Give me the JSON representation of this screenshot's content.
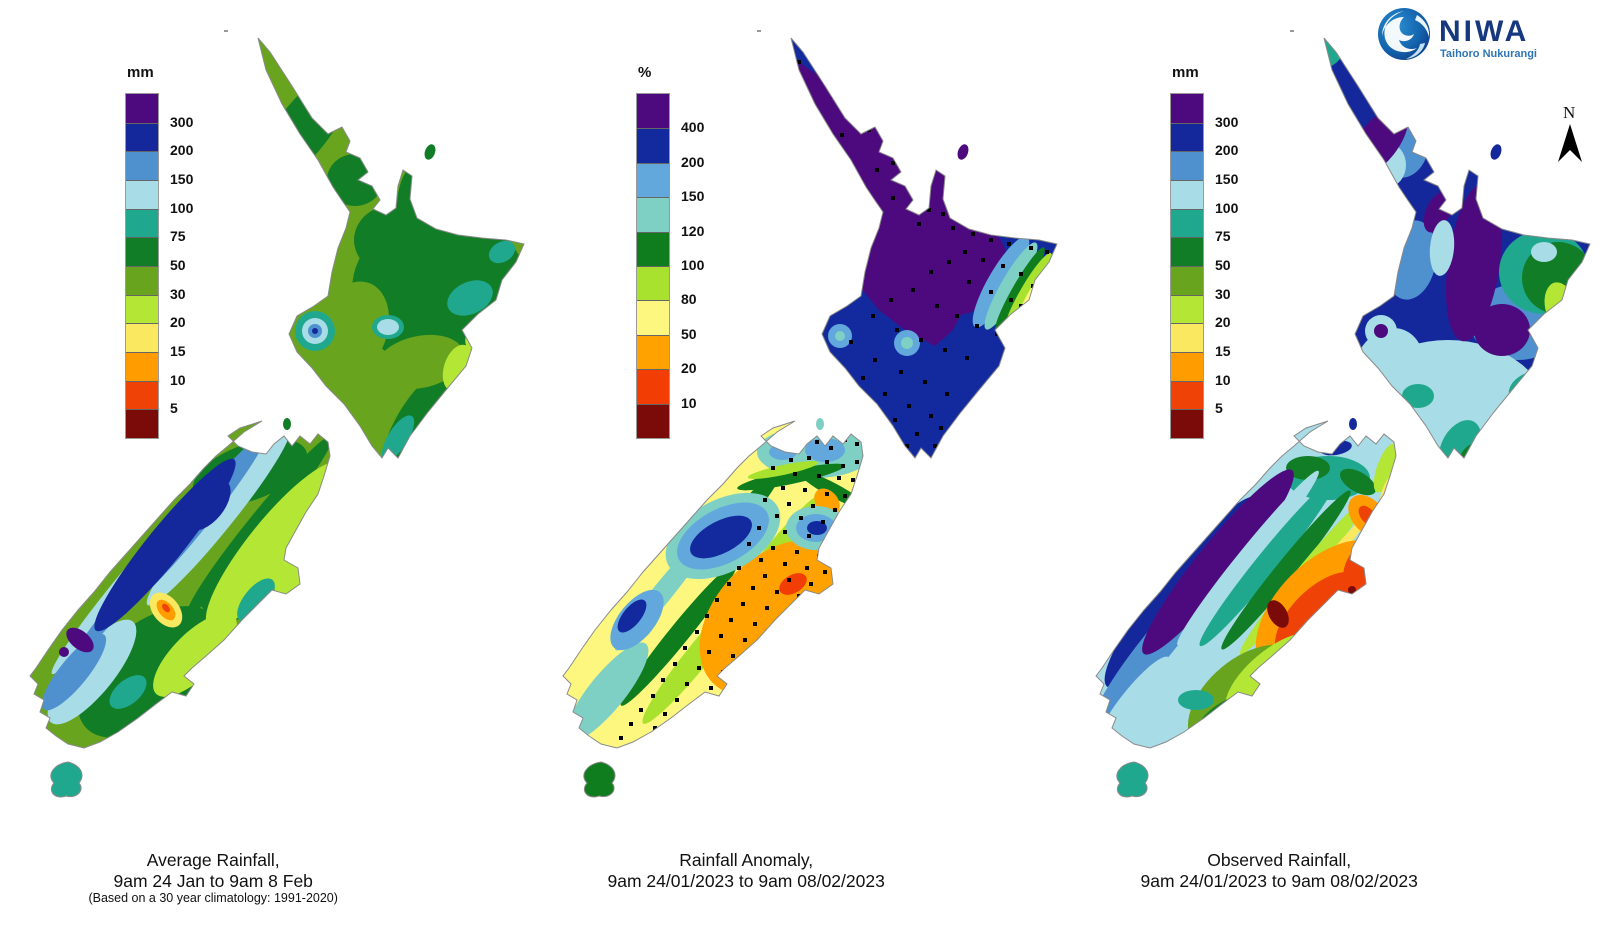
{
  "branding": {
    "name": "NIWA",
    "tagline": "Taihoro Nukurangi"
  },
  "compass_label": "N",
  "palette": {
    "logo_dark_blue": "#16387f",
    "logo_mid_blue": "#2e75b5",
    "coastline_grey": "#8a8a8a",
    "station_dot_black": "#000000"
  },
  "maps": [
    {
      "id": "average-rainfall",
      "legend": {
        "title": "mm",
        "labels": [
          "300",
          "200",
          "150",
          "100",
          "75",
          "50",
          "30",
          "20",
          "15",
          "10",
          "5"
        ],
        "colors": [
          "#4c0a7e",
          "#14289c",
          "#4f90cf",
          "#a8dce6",
          "#20a88e",
          "#117d27",
          "#68a41d",
          "#b3e635",
          "#fae860",
          "#ff9c00",
          "#ee4206",
          "#7b0b08"
        ]
      },
      "caption": {
        "line1": "Average Rainfall,",
        "line2": "9am 24 Jan to 9am 8 Feb",
        "line3": "(Based on a 30 year climatology: 1991-2020)"
      }
    },
    {
      "id": "rainfall-anomaly",
      "legend": {
        "title": "%",
        "labels": [
          "400",
          "200",
          "150",
          "120",
          "100",
          "80",
          "50",
          "20",
          "10"
        ],
        "colors": [
          "#4c0a7e",
          "#122a9e",
          "#62a8dc",
          "#7fd0c4",
          "#0f7d1e",
          "#a8e22e",
          "#fdf77f",
          "#ffa200",
          "#f23d05",
          "#7b0b08"
        ]
      },
      "caption": {
        "line1": "Rainfall Anomaly,",
        "line2": "9am 24/01/2023 to 9am 08/02/2023"
      },
      "station_dots": {
        "north_island": [
          [
            266,
            62
          ],
          [
            300,
            96
          ],
          [
            318,
            120
          ],
          [
            336,
            130
          ],
          [
            309,
            135
          ],
          [
            349,
            148
          ],
          [
            360,
            163
          ],
          [
            344,
            170
          ],
          [
            372,
            180
          ],
          [
            384,
            196
          ],
          [
            360,
            198
          ],
          [
            396,
            210
          ],
          [
            410,
            214
          ],
          [
            386,
            224
          ],
          [
            420,
            228
          ],
          [
            440,
            234
          ],
          [
            458,
            240
          ],
          [
            476,
            244
          ],
          [
            498,
            248
          ],
          [
            514,
            252
          ],
          [
            432,
            252
          ],
          [
            450,
            260
          ],
          [
            470,
            266
          ],
          [
            488,
            274
          ],
          [
            500,
            286
          ],
          [
            416,
            262
          ],
          [
            398,
            272
          ],
          [
            436,
            282
          ],
          [
            458,
            292
          ],
          [
            478,
            300
          ],
          [
            488,
            306
          ],
          [
            380,
            290
          ],
          [
            358,
            300
          ],
          [
            404,
            306
          ],
          [
            424,
            316
          ],
          [
            444,
            326
          ],
          [
            464,
            334
          ],
          [
            340,
            316
          ],
          [
            364,
            330
          ],
          [
            388,
            340
          ],
          [
            412,
            350
          ],
          [
            434,
            358
          ],
          [
            318,
            342
          ],
          [
            342,
            360
          ],
          [
            368,
            372
          ],
          [
            392,
            382
          ],
          [
            414,
            394
          ],
          [
            330,
            378
          ],
          [
            352,
            394
          ],
          [
            376,
            406
          ],
          [
            398,
            416
          ],
          [
            408,
            428
          ],
          [
            362,
            420
          ],
          [
            384,
            434
          ],
          [
            402,
            446
          ],
          [
            374,
            446
          ],
          [
            388,
            454
          ]
        ],
        "south_island": [
          [
            254,
            434
          ],
          [
            268,
            446
          ],
          [
            242,
            444
          ],
          [
            284,
            442
          ],
          [
            298,
            448
          ],
          [
            312,
            440
          ],
          [
            324,
            444
          ],
          [
            258,
            460
          ],
          [
            276,
            458
          ],
          [
            294,
            462
          ],
          [
            310,
            466
          ],
          [
            324,
            462
          ],
          [
            240,
            468
          ],
          [
            262,
            474
          ],
          [
            286,
            476
          ],
          [
            306,
            478
          ],
          [
            320,
            480
          ],
          [
            250,
            488
          ],
          [
            272,
            490
          ],
          [
            294,
            494
          ],
          [
            312,
            496
          ],
          [
            232,
            500
          ],
          [
            256,
            504
          ],
          [
            280,
            506
          ],
          [
            302,
            510
          ],
          [
            318,
            508
          ],
          [
            244,
            516
          ],
          [
            268,
            518
          ],
          [
            290,
            522
          ],
          [
            308,
            524
          ],
          [
            226,
            528
          ],
          [
            252,
            532
          ],
          [
            276,
            536
          ],
          [
            296,
            540
          ],
          [
            216,
            544
          ],
          [
            240,
            548
          ],
          [
            264,
            552
          ],
          [
            286,
            556
          ],
          [
            304,
            552
          ],
          [
            228,
            560
          ],
          [
            252,
            564
          ],
          [
            274,
            568
          ],
          [
            292,
            572
          ],
          [
            206,
            568
          ],
          [
            232,
            576
          ],
          [
            256,
            580
          ],
          [
            278,
            584
          ],
          [
            196,
            584
          ],
          [
            220,
            588
          ],
          [
            244,
            592
          ],
          [
            266,
            596
          ],
          [
            284,
            598
          ],
          [
            184,
            600
          ],
          [
            210,
            604
          ],
          [
            234,
            608
          ],
          [
            256,
            612
          ],
          [
            174,
            616
          ],
          [
            198,
            620
          ],
          [
            222,
            624
          ],
          [
            244,
            628
          ],
          [
            262,
            632
          ],
          [
            164,
            632
          ],
          [
            188,
            636
          ],
          [
            212,
            640
          ],
          [
            232,
            644
          ],
          [
            152,
            648
          ],
          [
            176,
            652
          ],
          [
            200,
            656
          ],
          [
            220,
            660
          ],
          [
            142,
            664
          ],
          [
            166,
            668
          ],
          [
            190,
            672
          ],
          [
            210,
            676
          ],
          [
            130,
            680
          ],
          [
            154,
            684
          ],
          [
            178,
            688
          ],
          [
            120,
            696
          ],
          [
            144,
            700
          ],
          [
            168,
            704
          ],
          [
            108,
            710
          ],
          [
            132,
            714
          ],
          [
            156,
            718
          ],
          [
            98,
            724
          ],
          [
            122,
            728
          ],
          [
            88,
            738
          ],
          [
            112,
            740
          ],
          [
            70,
            766
          ],
          [
            78,
            782
          ]
        ]
      }
    },
    {
      "id": "observed-rainfall",
      "legend": {
        "title": "mm",
        "labels": [
          "300",
          "200",
          "150",
          "100",
          "75",
          "50",
          "30",
          "20",
          "15",
          "10",
          "5"
        ],
        "colors": [
          "#4c0a7e",
          "#14289c",
          "#4f90cf",
          "#a8dce6",
          "#20a88e",
          "#117d27",
          "#68a41d",
          "#b3e635",
          "#fae860",
          "#ff9c00",
          "#ee4206",
          "#7b0b08"
        ]
      },
      "caption": {
        "line1": "Observed Rainfall,",
        "line2": "9am 24/01/2023 to 9am 08/02/2023"
      }
    }
  ]
}
